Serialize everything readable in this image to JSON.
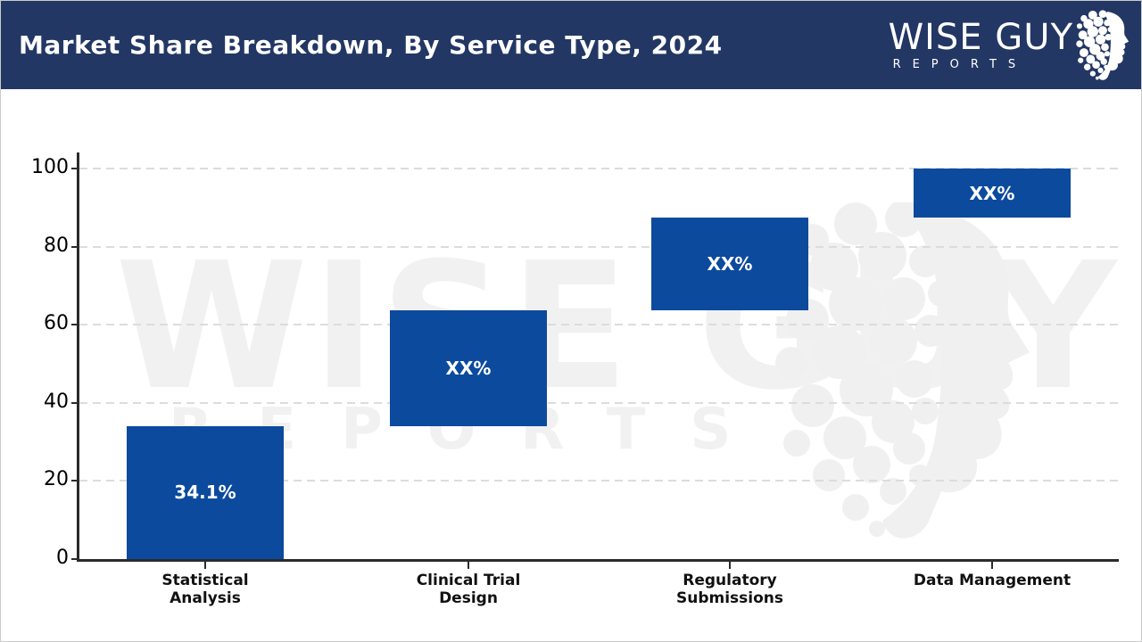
{
  "header": {
    "title": "Market Share Breakdown, By Service Type, 2024",
    "bg_color": "#233764",
    "logo": {
      "line1": "WISE GUY",
      "line2": "REPORTS"
    }
  },
  "watermark": {
    "line1": "WISE GUY",
    "line2": "REPORTS"
  },
  "colors": {
    "bar": "#0c4a9e",
    "header_bg": "#233764",
    "axis": "#2b2b2b",
    "grid": "#dcdcdc",
    "watermark": "#f1f1f1",
    "bar_label": "#ffffff",
    "canvas_border": "#cccccc"
  },
  "chart_data": {
    "type": "bar",
    "subtype": "floating-segment waterfall of market share",
    "title": "Market Share Breakdown, By Service Type, 2024",
    "categories": [
      "Statistical Analysis",
      "Clinical Trial Design",
      "Regulatory Submissions",
      "Data Management"
    ],
    "segments": [
      {
        "category_lines": [
          "Statistical",
          "Analysis"
        ],
        "start": 0,
        "end": 34.1,
        "value_label": "34.1%"
      },
      {
        "category_lines": [
          "Clinical Trial",
          "Design"
        ],
        "start": 34.1,
        "end": 63.8,
        "value_label": "XX%"
      },
      {
        "category_lines": [
          "Regulatory",
          "Submissions"
        ],
        "start": 63.8,
        "end": 87.5,
        "value_label": "XX%"
      },
      {
        "category_lines": [
          "Data Management"
        ],
        "start": 87.5,
        "end": 100,
        "value_label": "XX%"
      }
    ],
    "xlabel": "",
    "ylabel": "",
    "yticks": [
      0,
      20,
      40,
      60,
      80,
      100
    ],
    "ylim": [
      0,
      104
    ],
    "grid": "horizontal dashed",
    "legend": "none",
    "bar_color": "#0c4a9e"
  }
}
